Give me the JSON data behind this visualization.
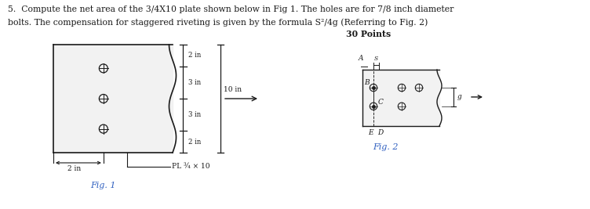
{
  "bg_color": "#ffffff",
  "text_color": "#1a1a1a",
  "title_line1": "5.  Compute the net area of the 3/4X10 plate shown below in Fig 1. The holes are for 7/8 inch diameter",
  "title_line2": "bolts. The compensation for staggered riveting is given by the formula S²/4g (Referring to Fig. 2)",
  "title_line3": "30 Points",
  "fig1_label": "Fig. 1",
  "fig2_label": "Fig. 2",
  "plate_label": "PL ¾ × 10",
  "dim_2in_top": "2 in",
  "dim_3in_upper": "3 in",
  "dim_3in_lower": "3 in",
  "dim_2in_bot": "2 in",
  "dim_10in": "10 in",
  "dim_2in_horiz": "2 in",
  "accent_color": "#3060c0"
}
